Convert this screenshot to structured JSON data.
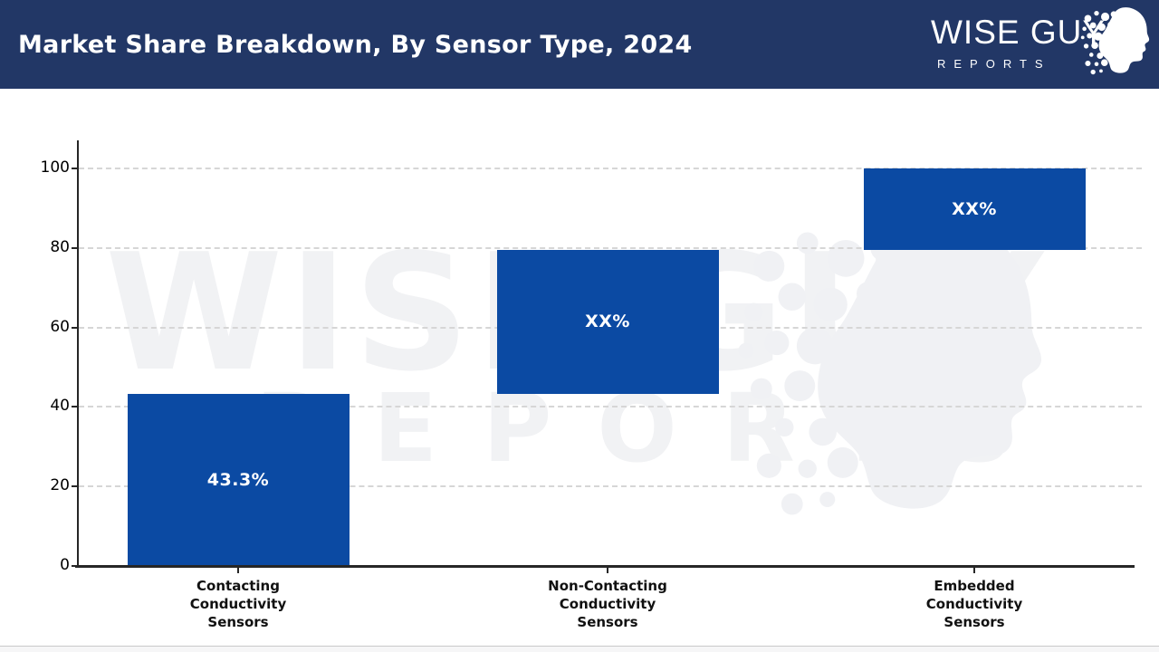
{
  "header": {
    "title": "Market Share Breakdown, By Sensor Type, 2024",
    "bg_color": "#223766",
    "logo": {
      "line1": "WISE GUY",
      "line2": "REPORTS"
    }
  },
  "watermark": {
    "line1": "WISE GUY",
    "line2": "REPORTS"
  },
  "chart_data": {
    "type": "bar",
    "variant": "waterfall",
    "title": "Market Share Breakdown, By Sensor Type, 2024",
    "xlabel": "",
    "ylabel": "",
    "ylim": [
      0,
      100
    ],
    "yticks": [
      0,
      20,
      40,
      60,
      80,
      100
    ],
    "grid": "horizontal-dashed",
    "legend": "none",
    "bar_color": "#0b4aa3",
    "value_label_color": "#ffffff",
    "categories": [
      {
        "lines": [
          "Contacting",
          "Conductivity",
          "Sensors"
        ]
      },
      {
        "lines": [
          "Non-Contacting",
          "Conductivity",
          "Sensors"
        ]
      },
      {
        "lines": [
          "Embedded",
          "Conductivity",
          "Sensors"
        ]
      }
    ],
    "segments": [
      {
        "category": "Contacting Conductivity Sensors",
        "start": 0,
        "end": 43.3,
        "label": "43.3%"
      },
      {
        "category": "Non-Contacting Conductivity Sensors",
        "start": 43.3,
        "end": 79.5,
        "label": "XX%"
      },
      {
        "category": "Embedded Conductivity Sensors",
        "start": 79.5,
        "end": 100,
        "label": "XX%"
      }
    ]
  }
}
